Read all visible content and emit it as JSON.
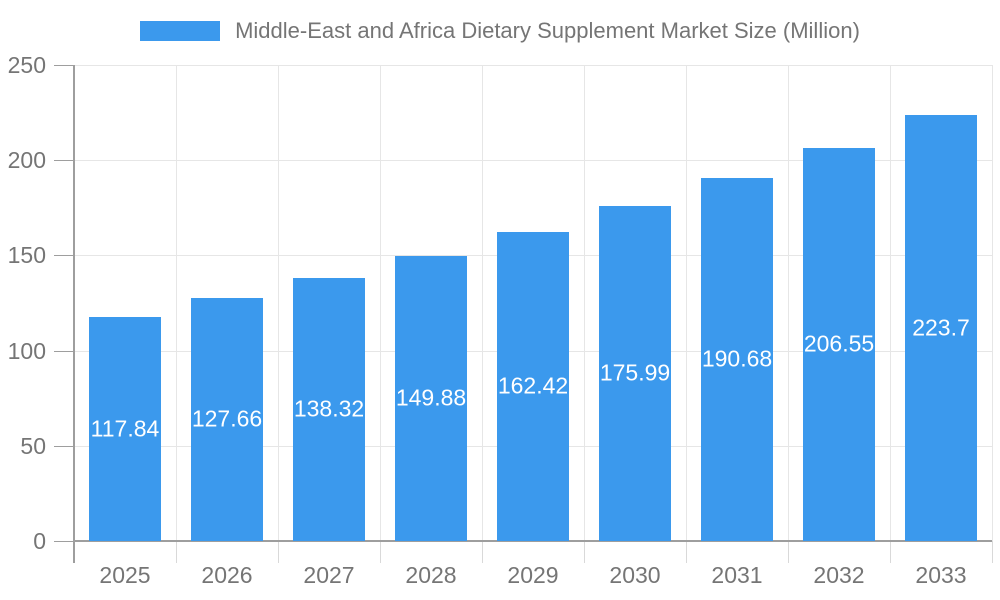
{
  "legend": {
    "label": "Middle-East and Africa Dietary Supplement Market Size (Million)",
    "swatch_color": "#3b99ed"
  },
  "chart_data": {
    "type": "bar",
    "title": "Middle-East and Africa Dietary Supplement Market Size (Million)",
    "categories": [
      "2025",
      "2026",
      "2027",
      "2028",
      "2029",
      "2030",
      "2031",
      "2032",
      "2033"
    ],
    "series": [
      {
        "name": "Middle-East and Africa Dietary Supplement Market Size (Million)",
        "values": [
          117.84,
          127.66,
          138.32,
          149.88,
          162.42,
          175.99,
          190.68,
          206.55,
          223.7
        ],
        "color": "#3b99ed"
      }
    ],
    "xlabel": "",
    "ylabel": "",
    "ylim": [
      0,
      250
    ],
    "yticks": [
      0,
      50,
      100,
      150,
      200,
      250
    ],
    "grid": true,
    "legend_position": "top-center",
    "value_label_position": "inside-center",
    "value_label_color": "#ffffff"
  },
  "style": {
    "bar_color": "#3b99ed",
    "grid_color": "#e6e6e6",
    "axis_color": "#9e9e9e",
    "x_tick_color": "#d9d9d9",
    "text_color": "#757575",
    "background": "#ffffff"
  }
}
